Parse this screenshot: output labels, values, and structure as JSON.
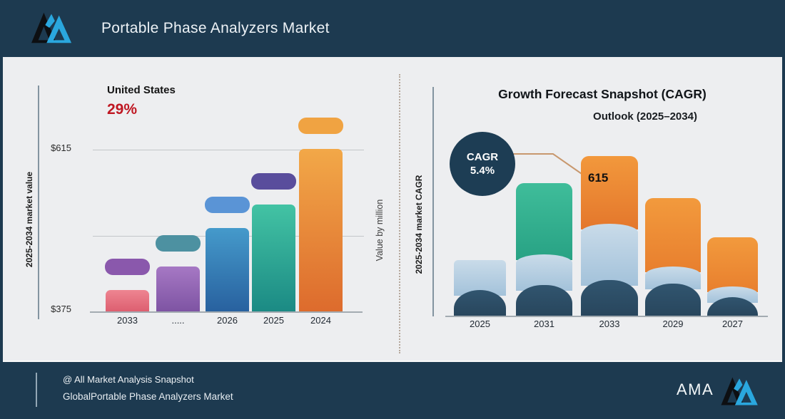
{
  "header": {
    "title": "Portable Phase Analyzers Market",
    "brand": "AMA",
    "logo_icon": "ama-mountain-logo"
  },
  "footer": {
    "line1": "@ All Market Analysis Snapshot",
    "line2": "GlobalPortable Phase Analyzers Market",
    "brand": "AMA",
    "logo_icon": "ama-mountain-logo"
  },
  "colors": {
    "banner_navy": "#1d3a50",
    "panel_gray": "#edeef0",
    "accent_red": "#bf1722",
    "badge_navy": "#1d3d54",
    "connector_tan": "#c8986e",
    "separator_dotted": "#b5a79b"
  },
  "chart_data": [
    {
      "type": "bar",
      "title": "United States",
      "highlight": "29%",
      "ylabel": "2025-2034 market value",
      "ylabel_right": "Value by million",
      "yticks": [
        "$615",
        "$375"
      ],
      "ylim": [
        375,
        639
      ],
      "gridline_values": [
        615,
        495
      ],
      "categories": [
        "2033",
        ".....",
        "2026",
        "2025",
        "2024"
      ],
      "values": [
        407,
        441,
        498,
        533,
        615
      ],
      "bar_colors": [
        [
          "#ee8591",
          "#dd5f70"
        ],
        [
          "#a678c4",
          "#7e54a3"
        ],
        [
          "#459acb",
          "#28619f"
        ],
        [
          "#43c3a4",
          "#1b8a84"
        ],
        [
          "#f2a848",
          "#dd6b2d"
        ]
      ],
      "cap_colors": [
        "#8a58ac",
        "#4d91a1",
        "#5a94d6",
        "#594d9c",
        "#f0a342"
      ],
      "legend": "none",
      "grid": true
    },
    {
      "type": "stacked-bar",
      "title": "Growth Forecast Snapshot (CAGR)",
      "subtitle": "Outlook (2025–2034)",
      "ylabel": "2025-2034 market CAGR",
      "badge": {
        "label": "CAGR",
        "value": "5.4%"
      },
      "annotation": {
        "category": "2033",
        "value": "615"
      },
      "categories": [
        "2025",
        "2031",
        "2033",
        "2029",
        "2027"
      ],
      "series": [
        {
          "name": "top",
          "values": [
            0,
            275,
            261,
            264,
            189
          ],
          "colors": [
            null,
            [
              "#3fbd9a",
              "#28a284"
            ],
            [
              "#f2983c",
              "#e4772c"
            ],
            [
              "#f29a3d",
              "#e87f2e"
            ],
            [
              "#f29a3d",
              "#e87f2e"
            ]
          ]
        },
        {
          "name": "mid",
          "values": [
            115,
            118,
            217,
            66,
            41
          ],
          "colors": [
            [
              "#c9dbe9",
              "#a3c2da"
            ],
            [
              "#c9dbe9",
              "#a3c2da"
            ],
            [
              "#c9dbe9",
              "#a3c2da"
            ],
            [
              "#c9dbe9",
              "#a3c2da"
            ],
            [
              "#c9dbe9",
              "#a3c2da"
            ]
          ]
        },
        {
          "name": "base",
          "values": [
            99,
            118,
            137,
            124,
            71
          ],
          "colors": [
            [
              "#31556f",
              "#28465d"
            ],
            [
              "#31556f",
              "#28465d"
            ],
            [
              "#31556f",
              "#28465d"
            ],
            [
              "#31556f",
              "#28465d"
            ],
            [
              "#31556f",
              "#28465d"
            ]
          ]
        }
      ],
      "totals": [
        214,
        511,
        615,
        454,
        301
      ],
      "legend": "none",
      "grid": false
    }
  ]
}
